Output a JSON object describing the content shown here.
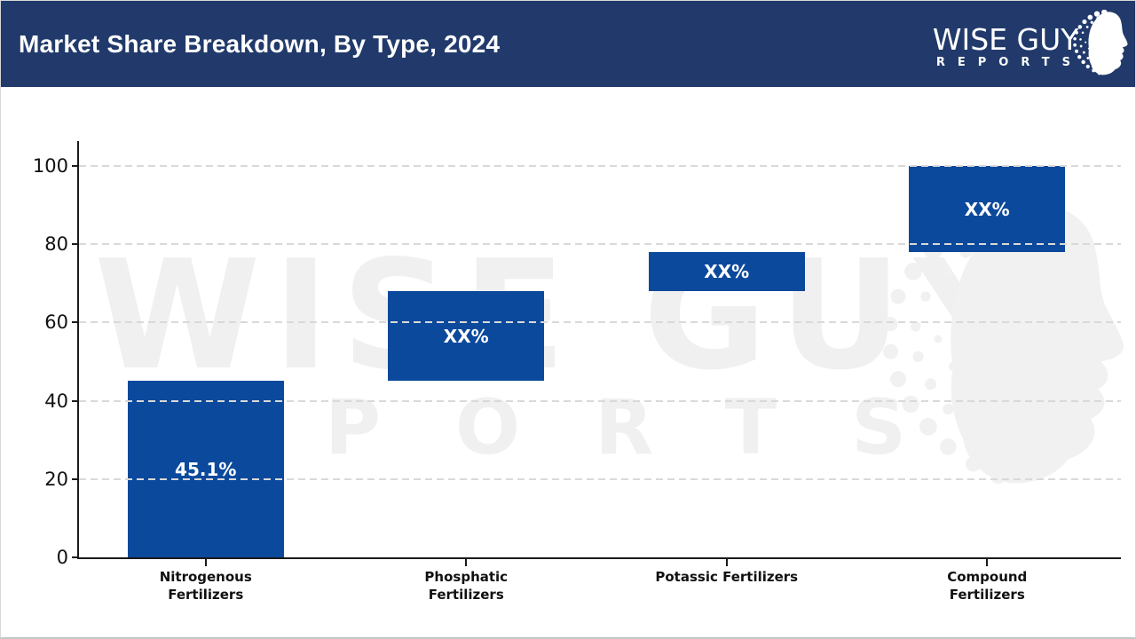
{
  "header": {
    "title": "Market Share Breakdown, By Type, 2024",
    "bg_color": "#213a6b"
  },
  "logo": {
    "line1": "WISE GUY",
    "line2": "REPORTS"
  },
  "watermark": {
    "line1": "WISE GUY",
    "line2": "PORTS"
  },
  "chart_data": {
    "type": "bar",
    "subtype": "waterfall",
    "title": "Market Share Breakdown, By Type, 2024",
    "categories": [
      "Nitrogenous Fertilizers",
      "Phosphatic Fertilizers",
      "Potassic Fertilizers",
      "Compound Fertilizers"
    ],
    "bars": [
      {
        "start": 0,
        "end": 45.1,
        "label": "45.1%"
      },
      {
        "start": 45.1,
        "end": 68,
        "label": "XX%"
      },
      {
        "start": 68,
        "end": 78,
        "label": "XX%"
      },
      {
        "start": 78,
        "end": 100,
        "label": "XX%"
      }
    ],
    "yticks": [
      0,
      20,
      40,
      60,
      80,
      100
    ],
    "ylim": [
      0,
      106
    ],
    "xlabel": "",
    "ylabel": "",
    "legend": "none",
    "grid": "horizontal-dashed-above-bars",
    "bar_color": "#0b499c",
    "grid_color": "#d9d9d9",
    "axis_color": "#1a1a1a"
  }
}
